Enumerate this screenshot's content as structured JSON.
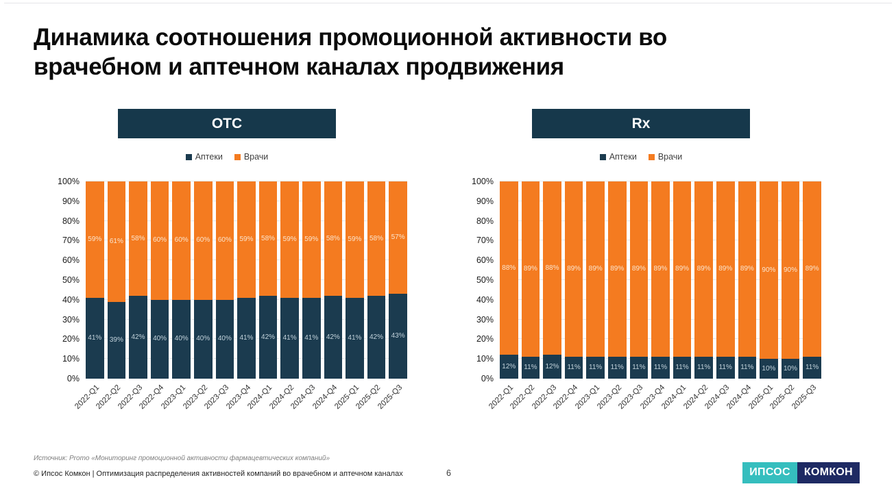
{
  "slide": {
    "title_lines": [
      "Динамика соотношения промоционной активности во",
      "врачебном и аптечном каналах продвижения"
    ],
    "source": "Источник: Promo «Мониторинг промоционной активности фармацевтических компаний»",
    "copyright": "© Ипсос Комкон | Оптимизация распределения активностей компаний во врачебном и аптечном каналах",
    "page_number": "6",
    "logo": {
      "part1": "ИПСОС",
      "part2": "КОМКОН"
    }
  },
  "colors": {
    "pharmacy": "#1B3B4F",
    "doctors": "#F47B20",
    "banner": "#16384B",
    "logo_teal": "#35BEBE",
    "logo_navy": "#1E2A63"
  },
  "legend": {
    "pharmacy_label": "Аптеки",
    "doctors_label": "Врачи"
  },
  "chart_data": [
    {
      "type": "bar",
      "stacked": true,
      "title": "OTC",
      "ylim": [
        0,
        100
      ],
      "ytick_step": 10,
      "grid": true,
      "legend_position": "top",
      "categories": [
        "2022-Q1",
        "2022-Q2",
        "2022-Q3",
        "2022-Q4",
        "2023-Q1",
        "2023-Q2",
        "2023-Q3",
        "2023-Q4",
        "2024-Q1",
        "2024-Q2",
        "2024-Q3",
        "2024-Q4",
        "2025-Q1",
        "2025-Q2",
        "2025-Q3"
      ],
      "series": [
        {
          "name": "Аптеки",
          "color": "#1B3B4F",
          "label_color": "#C2D2DB",
          "values": [
            41,
            39,
            42,
            40,
            40,
            40,
            40,
            41,
            42,
            41,
            41,
            42,
            41,
            42,
            43
          ]
        },
        {
          "name": "Врачи",
          "color": "#F47B20",
          "label_color": "#FBE5CE",
          "values": [
            59,
            61,
            58,
            60,
            60,
            60,
            60,
            59,
            58,
            59,
            59,
            58,
            59,
            58,
            57
          ]
        }
      ]
    },
    {
      "type": "bar",
      "stacked": true,
      "title": "Rx",
      "ylim": [
        0,
        100
      ],
      "ytick_step": 10,
      "grid": true,
      "legend_position": "top",
      "categories": [
        "2022-Q1",
        "2022-Q2",
        "2022-Q3",
        "2022-Q4",
        "2023-Q1",
        "2023-Q2",
        "2023-Q3",
        "2023-Q4",
        "2024-Q1",
        "2024-Q2",
        "2024-Q3",
        "2024-Q4",
        "2025-Q1",
        "2025-Q2",
        "2025-Q3"
      ],
      "series": [
        {
          "name": "Аптеки",
          "color": "#1B3B4F",
          "label_color": "#C2D2DB",
          "values": [
            12,
            11,
            12,
            11,
            11,
            11,
            11,
            11,
            11,
            11,
            11,
            11,
            10,
            10,
            11
          ]
        },
        {
          "name": "Врачи",
          "color": "#F47B20",
          "label_color": "#FBE5CE",
          "values": [
            88,
            89,
            88,
            89,
            89,
            89,
            89,
            89,
            89,
            89,
            89,
            89,
            90,
            90,
            89
          ]
        }
      ]
    }
  ]
}
